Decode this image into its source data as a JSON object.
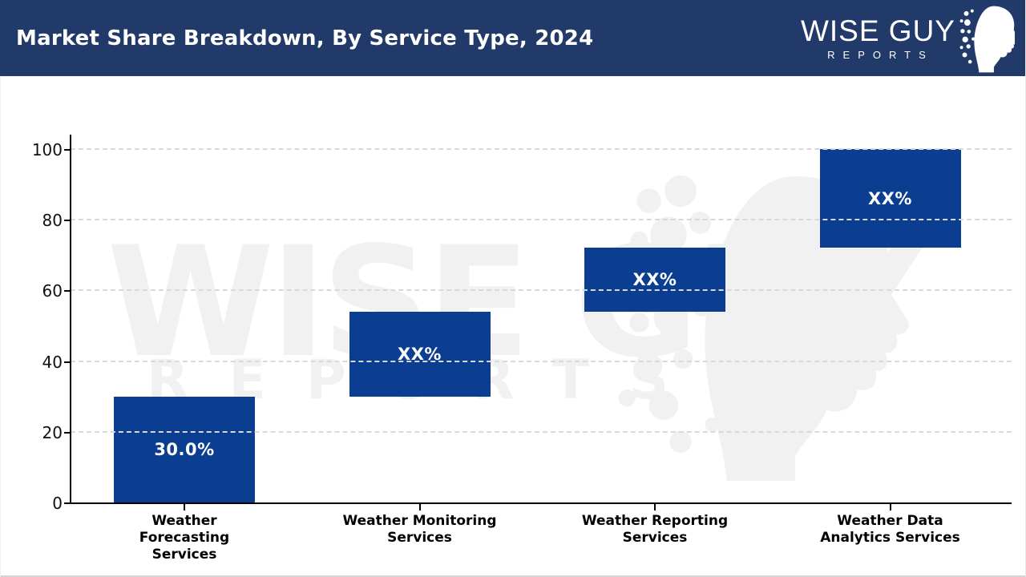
{
  "header": {
    "title": "Market Share Breakdown, By Service Type, 2024",
    "logo": {
      "wordmark": "WISE GUY",
      "subtext": "REPORTS"
    }
  },
  "watermark": {
    "wordmark": "WISE GUY",
    "subtext": "REPORTS"
  },
  "colors": {
    "header_bg": "#213a69",
    "bar": "#0b3d91",
    "grid": "#d9d9d9",
    "axis": "#000000",
    "bar_label": "#ffffff",
    "watermark": "#f1f1f1"
  },
  "chart_data": {
    "type": "bar",
    "subtype": "waterfall",
    "title": "Market Share Breakdown, By Service Type, 2024",
    "categories": [
      [
        "Weather",
        "Forecasting",
        "Services"
      ],
      [
        "Weather Monitoring",
        "Services"
      ],
      [
        "Weather Reporting",
        "Services"
      ],
      [
        "Weather Data",
        "Analytics Services"
      ]
    ],
    "segments": [
      {
        "category": "Weather Forecasting Services",
        "start": 0,
        "end": 30,
        "label": "30.0%"
      },
      {
        "category": "Weather Monitoring Services",
        "start": 30,
        "end": 54,
        "label": "XX%"
      },
      {
        "category": "Weather Reporting Services",
        "start": 54,
        "end": 72,
        "label": "XX%"
      },
      {
        "category": "Weather Data Analytics Services",
        "start": 72,
        "end": 100,
        "label": "XX%"
      }
    ],
    "yticks": [
      0,
      20,
      40,
      60,
      80,
      100
    ],
    "ylim": [
      0,
      104
    ],
    "xlabel": "",
    "ylabel": "",
    "grid": "dashed-horizontal",
    "legend": "none"
  }
}
